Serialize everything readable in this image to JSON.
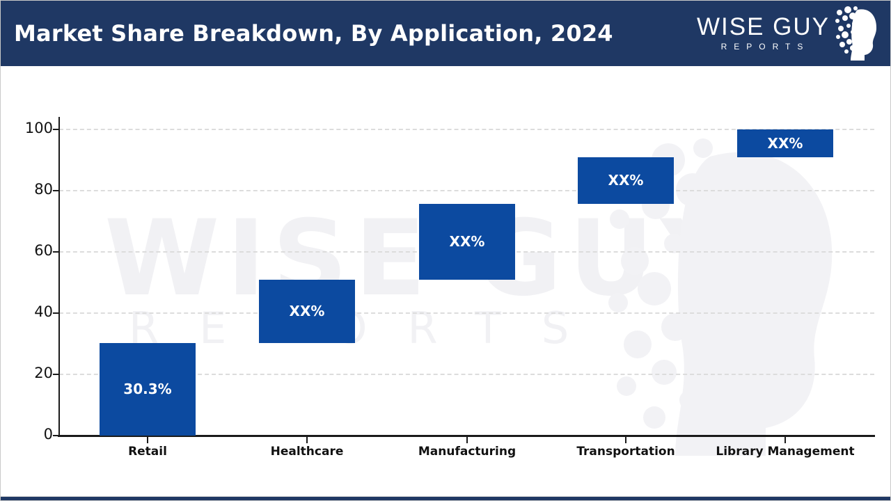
{
  "header": {
    "title": "Market Share Breakdown, By Application, 2024",
    "logo": {
      "line1": "WISE GUY",
      "line2": "REPORTS"
    }
  },
  "watermark": {
    "line1": "WISE GUY",
    "line2": "REPORTS"
  },
  "colors": {
    "header_bg": "#1f3864",
    "bar": "#0c4aa0",
    "bar_label": "#ffffff",
    "gridline": "#dcdcdc",
    "axis": "#1a1a1a",
    "watermark": "#f1f1f4"
  },
  "chart_data": {
    "type": "bar",
    "subtype": "waterfall",
    "title": "Market Share Breakdown, By Application, 2024",
    "categories": [
      "Retail",
      "Healthcare",
      "Manufacturing",
      "Transportation",
      "Library Management"
    ],
    "segments": [
      {
        "category": "Retail",
        "start": 0,
        "end": 30.3,
        "value": 30.3,
        "label": "30.3%"
      },
      {
        "category": "Healthcare",
        "start": 30.3,
        "end": 51.0,
        "value": 20.7,
        "label": "XX%"
      },
      {
        "category": "Manufacturing",
        "start": 51.0,
        "end": 75.7,
        "value": 24.7,
        "label": "XX%"
      },
      {
        "category": "Transportation",
        "start": 75.7,
        "end": 90.9,
        "value": 15.2,
        "label": "XX%"
      },
      {
        "category": "Library Management",
        "start": 90.9,
        "end": 100.0,
        "value": 9.1,
        "label": "XX%"
      }
    ],
    "xlabel": "",
    "ylabel": "",
    "ylim": [
      0,
      100
    ],
    "yticks": [
      0,
      20,
      40,
      60,
      80,
      100
    ],
    "grid": "horizontal-dashed",
    "legend": "none"
  }
}
